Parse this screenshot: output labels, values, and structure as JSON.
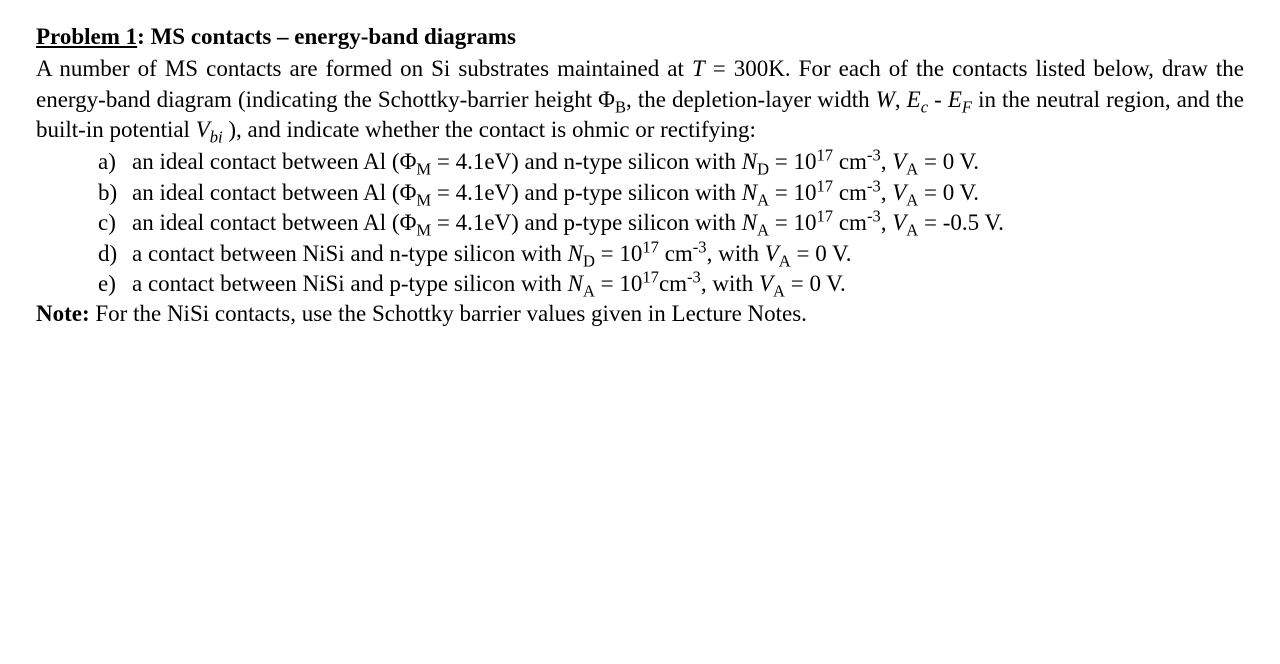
{
  "title": {
    "label": "Problem 1",
    "separator": ": ",
    "rest": "MS contacts – energy-band diagrams"
  },
  "intro": {
    "html": "A number of MS contacts are formed on Si substrates maintained at <span class=\"ital\">T</span> = 300K.  For each of the contacts listed below, draw the energy-band diagram (indicating the Schottky-barrier height Φ<span class=\"sub\">B</span>, the depletion-layer width <span class=\"ital\">W</span>, <span class=\"ital\">E<span class=\"sub\">c</span></span> - <span class=\"ital\">E<span class=\"sub\">F</span></span> in the neutral region, and the built-in potential <span class=\"ital\">V<span class=\"sub\">bi</span></span> ), and indicate whether the contact is ohmic or rectifying:"
  },
  "items": [
    {
      "marker": "a)",
      "html": "an ideal contact between Al (Φ<span class=\"sub\">M</span> = 4.1eV) and n-type silicon with <span class=\"ital\">N</span><span class=\"sub\">D</span> = 10<span class=\"sup\">17</span> cm<span class=\"sup\">-3</span>, <span class=\"ital\">V</span><span class=\"sub\">A</span> = 0 V."
    },
    {
      "marker": "b)",
      "html": "an ideal contact between Al (Φ<span class=\"sub\">M</span> = 4.1eV) and p-type silicon with <span class=\"ital\">N</span><span class=\"sub\">A</span> = 10<span class=\"sup\">17</span> cm<span class=\"sup\">-3</span>, <span class=\"ital\">V</span><span class=\"sub\">A</span> = 0 V."
    },
    {
      "marker": "c)",
      "html": "an ideal contact between Al (Φ<span class=\"sub\">M</span> = 4.1eV) and p-type silicon with <span class=\"ital\">N</span><span class=\"sub\">A</span> = 10<span class=\"sup\">17</span> cm<span class=\"sup\">-3</span>, <span class=\"ital\">V</span><span class=\"sub\">A</span> = -0.5 V."
    },
    {
      "marker": "d)",
      "html": "a contact between NiSi and n-type silicon with <span class=\"ital\">N</span><span class=\"sub\">D</span> = 10<span class=\"sup\">17</span> cm<span class=\"sup\">-3</span>, with <span class=\"ital\">V</span><span class=\"sub\">A</span> = 0 V."
    },
    {
      "marker": "e)",
      "html": "a contact between NiSi and p-type silicon with <span class=\"ital\">N</span><span class=\"sub\">A</span> = 10<span class=\"sup\">17</span>cm<span class=\"sup\">-3</span>, with <span class=\"ital\">V</span><span class=\"sub\">A</span> = 0 V."
    }
  ],
  "note": {
    "label": "Note:",
    "text": "  For the NiSi contacts, use the Schottky barrier values given in Lecture Notes."
  }
}
